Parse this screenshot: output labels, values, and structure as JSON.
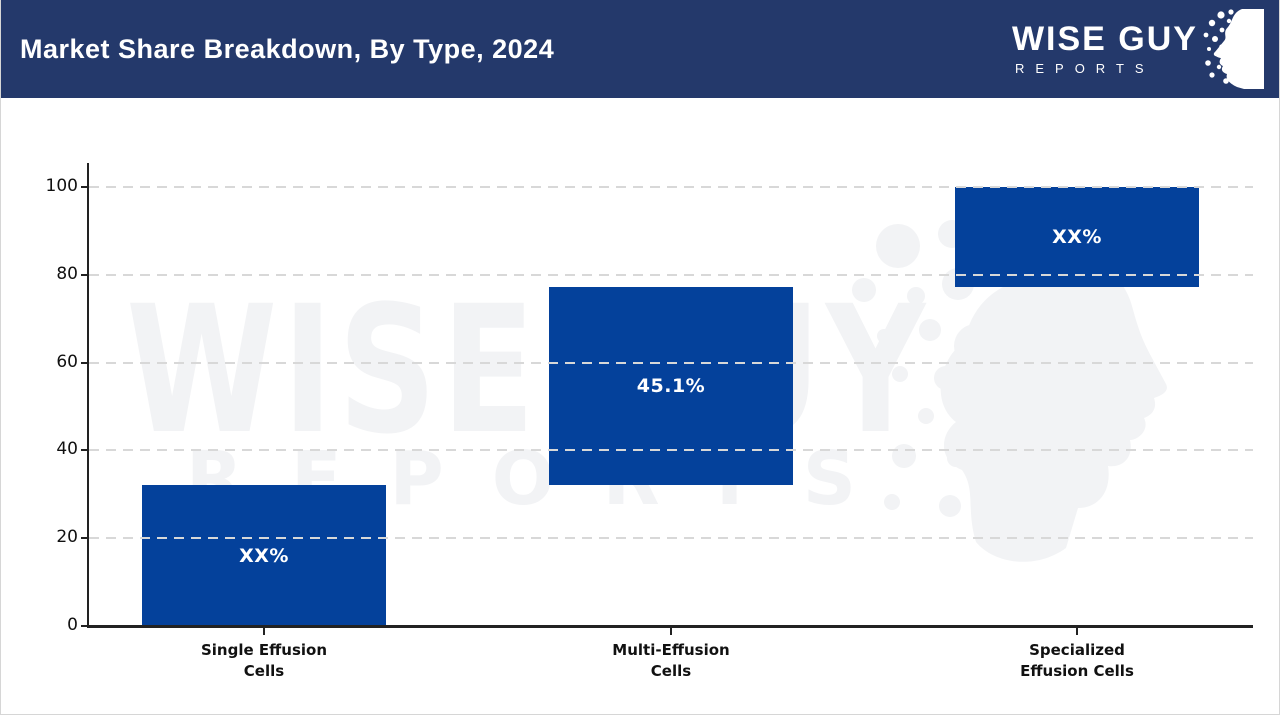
{
  "header": {
    "title": "Market Share Breakdown, By Type, 2024",
    "logo": {
      "wordmark": "WISE GUY",
      "subtitle": "REPORTS"
    }
  },
  "watermark": {
    "wordmark": "WISE GUY",
    "subtitle": "REPORTS"
  },
  "colors": {
    "header_bg": "#24396b",
    "bar": "#04419b",
    "grid": "#d8d8d8",
    "axis": "#222222",
    "watermark": "#f2f3f5"
  },
  "chart_data": {
    "type": "bar",
    "subtype": "stacked-breakdown-waterfall",
    "title": "Market Share Breakdown, By Type, 2024",
    "xlabel": "",
    "ylabel": "",
    "ylim": [
      0,
      100
    ],
    "yticks": [
      0,
      20,
      40,
      60,
      80,
      100
    ],
    "grid": "dashed-horizontal",
    "legend": "none",
    "bar_color": "#04419b",
    "categories": [
      {
        "label": "Single Effusion Cells",
        "lines": [
          "Single Effusion",
          "Cells"
        ]
      },
      {
        "label": "Multi-Effusion Cells",
        "lines": [
          "Multi-Effusion",
          "Cells"
        ]
      },
      {
        "label": "Specialized Effusion Cells",
        "lines": [
          "Specialized",
          "Effusion Cells"
        ]
      }
    ],
    "segments": [
      {
        "category": "Single Effusion Cells",
        "start": 0,
        "end": 32.1,
        "value_label": "XX%"
      },
      {
        "category": "Multi-Effusion Cells",
        "start": 32.1,
        "end": 77.2,
        "value_label": "45.1%"
      },
      {
        "category": "Specialized Effusion Cells",
        "start": 77.2,
        "end": 100,
        "value_label": "XX%"
      }
    ]
  }
}
